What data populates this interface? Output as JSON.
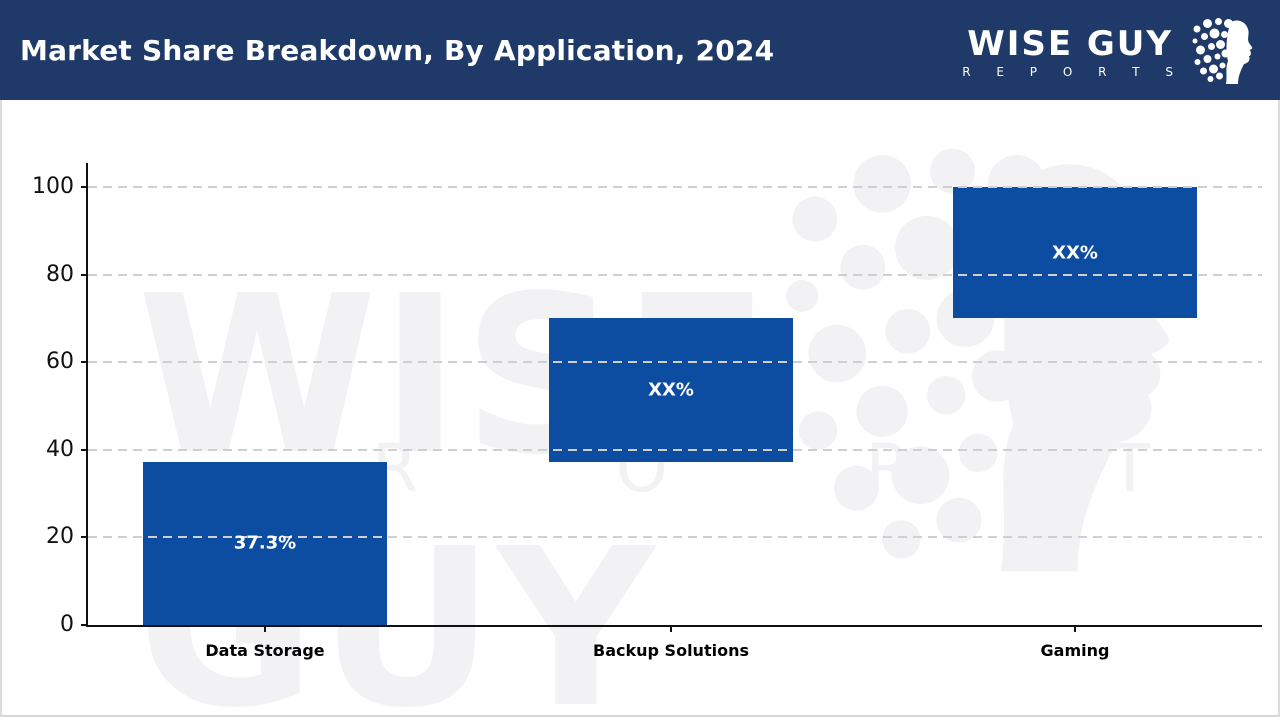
{
  "header": {
    "title": "Market Share Breakdown, By Application, 2024",
    "logo": {
      "name": "WISE GUY",
      "subtitle": "R E P O R T S"
    }
  },
  "watermark": {
    "name": "WISE GUY",
    "subtitle": "REPORTS"
  },
  "chart_data": {
    "type": "bar",
    "subtype": "floating-segment (waterfall-style market share)",
    "title": "Market Share Breakdown, By Application, 2024",
    "categories": [
      "Data Storage",
      "Backup Solutions",
      "Gaming"
    ],
    "segments": [
      {
        "category": "Data Storage",
        "start": 0,
        "end": 37.3,
        "label": "37.3%"
      },
      {
        "category": "Backup Solutions",
        "start": 37.3,
        "end": 70,
        "label": "XX%"
      },
      {
        "category": "Gaming",
        "start": 70,
        "end": 100,
        "label": "XX%"
      }
    ],
    "xlabel": "",
    "ylabel": "",
    "ylim": [
      0,
      100
    ],
    "yticks": [
      0,
      20,
      40,
      60,
      80,
      100
    ],
    "grid": "horizontal dashed, drawn over bars",
    "legend": "none"
  },
  "colors": {
    "header_bg": "#1f3a68",
    "bar_fill": "#0c4da2",
    "bar_label": "#ffffff",
    "grid_line": "#cfcfcf",
    "axis_line": "#111111",
    "frame_border": "#d9d9d9",
    "watermark": "#f2f2f4",
    "tick_text": "#111111"
  }
}
